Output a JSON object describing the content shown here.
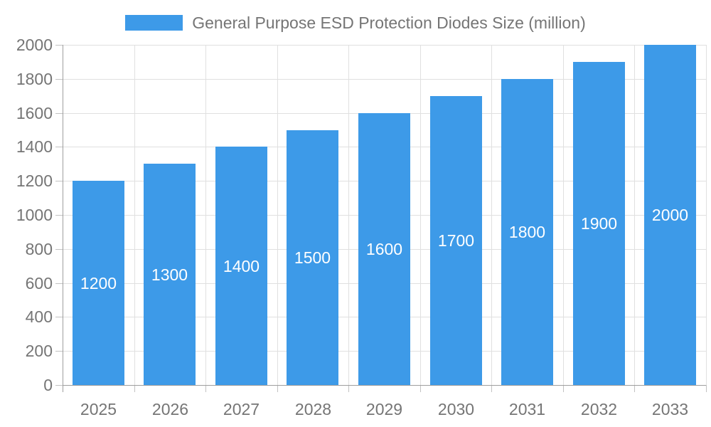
{
  "legend": {
    "label": "General Purpose ESD Protection Diodes Size (million)"
  },
  "colors": {
    "bar": "#3d9ae8",
    "bar_label": "#ffffff",
    "text": "#757575",
    "grid": "#e0e0e0",
    "axis": "#9e9e9e",
    "tick": "#c2c2c2",
    "background": "#ffffff"
  },
  "chart_data": {
    "type": "bar",
    "categories": [
      "2025",
      "2026",
      "2027",
      "2028",
      "2029",
      "2030",
      "2031",
      "2032",
      "2033"
    ],
    "values": [
      1200,
      1300,
      1400,
      1500,
      1600,
      1700,
      1800,
      1900,
      2000
    ],
    "title": "General Purpose ESD Protection Diodes Size (million)",
    "xlabel": "",
    "ylabel": "",
    "ylim": [
      0,
      2000
    ],
    "ytick_step": 200,
    "ytick_labels": [
      "0",
      "200",
      "400",
      "600",
      "800",
      "1000",
      "1200",
      "1400",
      "1600",
      "1800",
      "2000"
    ],
    "grid": true,
    "legend_position": "top-center",
    "bar_value_labels": "inside-center"
  }
}
